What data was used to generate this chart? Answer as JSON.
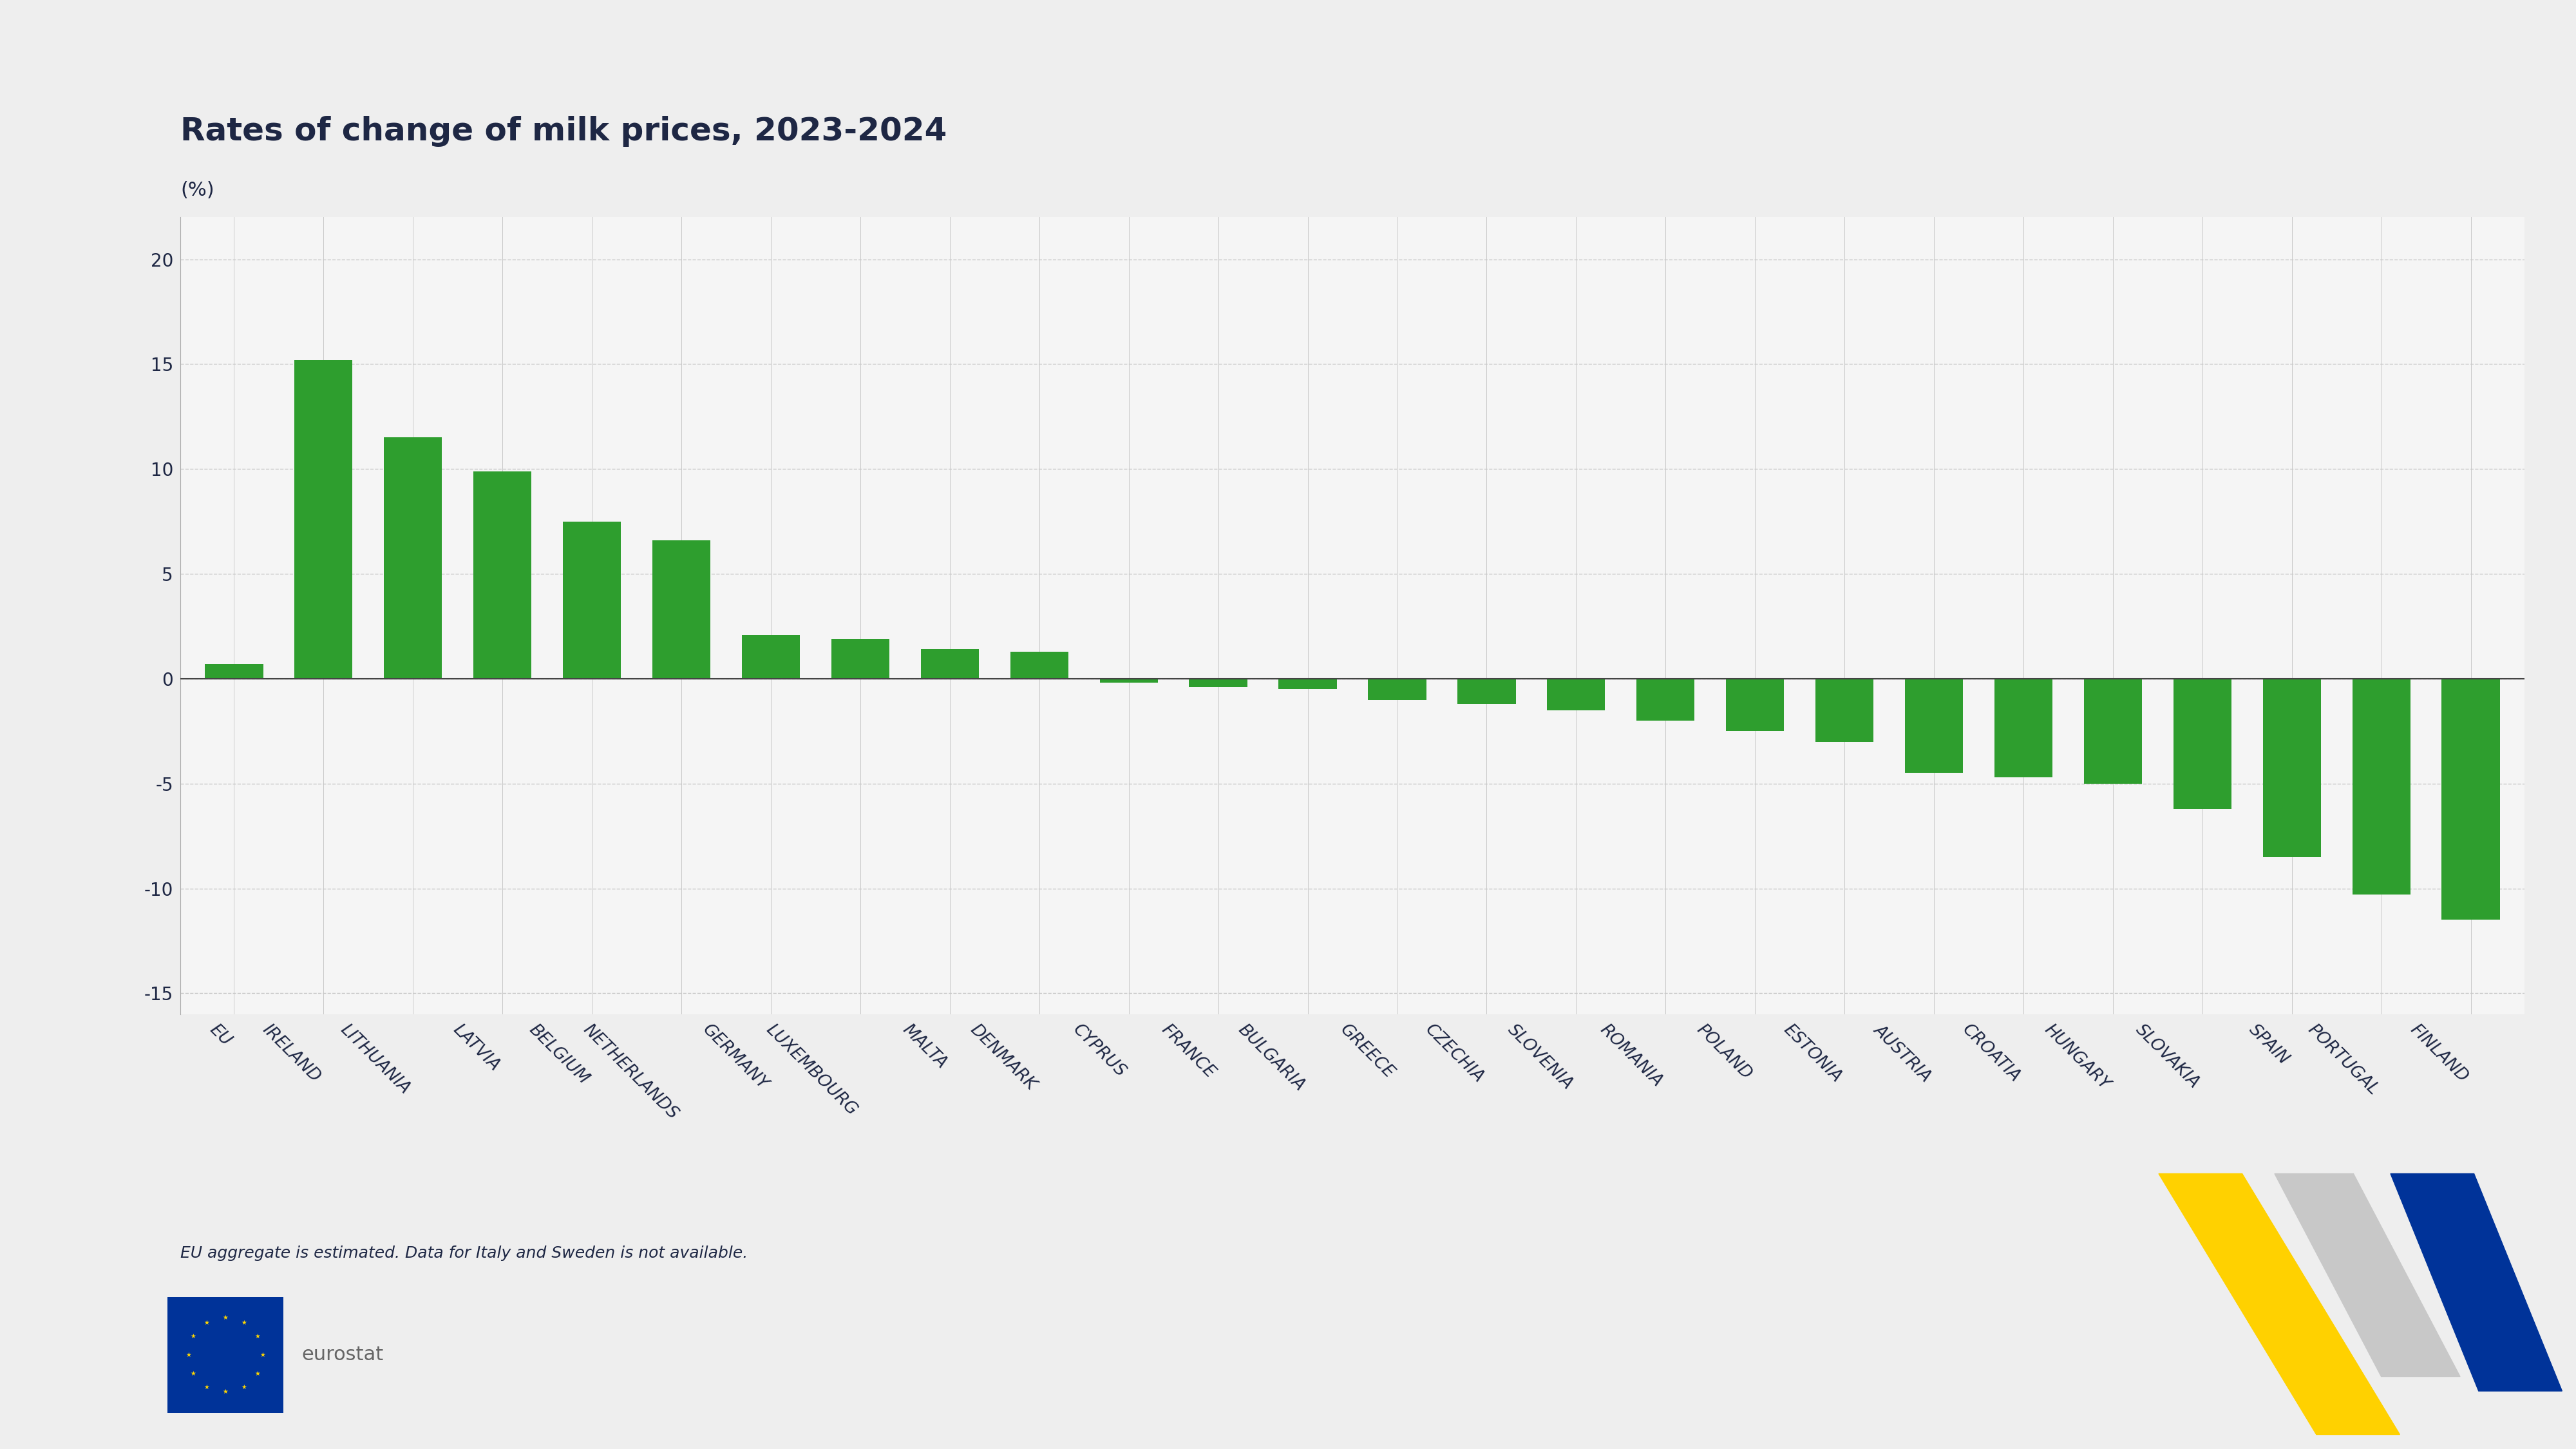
{
  "title": "Rates of change of milk prices, 2023-2024",
  "ylabel": "(%)",
  "categories": [
    "EU",
    "IRELAND",
    "LITHUANIA",
    "LATVIA",
    "BELGIUM",
    "NETHERLANDS",
    "GERMANY",
    "LUXEMBOURG",
    "MALTA",
    "DENMARK",
    "CYPRUS",
    "FRANCE",
    "BULGARIA",
    "GREECE",
    "CZECHIA",
    "SLOVENIA",
    "ROMANIA",
    "POLAND",
    "ESTONIA",
    "AUSTRIA",
    "CROATIA",
    "HUNGARY",
    "SLOVAKIA",
    "SPAIN",
    "PORTUGAL",
    "FINLAND"
  ],
  "values": [
    0.7,
    15.2,
    11.5,
    9.9,
    7.5,
    6.6,
    2.1,
    1.9,
    1.4,
    1.3,
    -0.2,
    -0.4,
    -0.5,
    -1.0,
    -1.2,
    -1.5,
    -2.0,
    -2.5,
    -3.0,
    -4.5,
    -4.7,
    -5.0,
    -6.2,
    -8.5,
    -10.3,
    -11.5
  ],
  "bar_color": "#2e9e2e",
  "background_color": "#eeeeee",
  "plot_background_color": "#f5f5f5",
  "ylim": [
    -16,
    22
  ],
  "yticks": [
    -15,
    -10,
    -5,
    0,
    5,
    10,
    15,
    20
  ],
  "grid_color": "#c8c8c8",
  "title_color": "#1e2744",
  "tick_label_color": "#1e2744",
  "footnote": "EU aggregate is estimated. Data for Italy and Sweden is not available.",
  "title_fontsize": 36,
  "ylabel_fontsize": 22,
  "tick_fontsize": 20,
  "xtick_fontsize": 19,
  "footnote_fontsize": 18
}
